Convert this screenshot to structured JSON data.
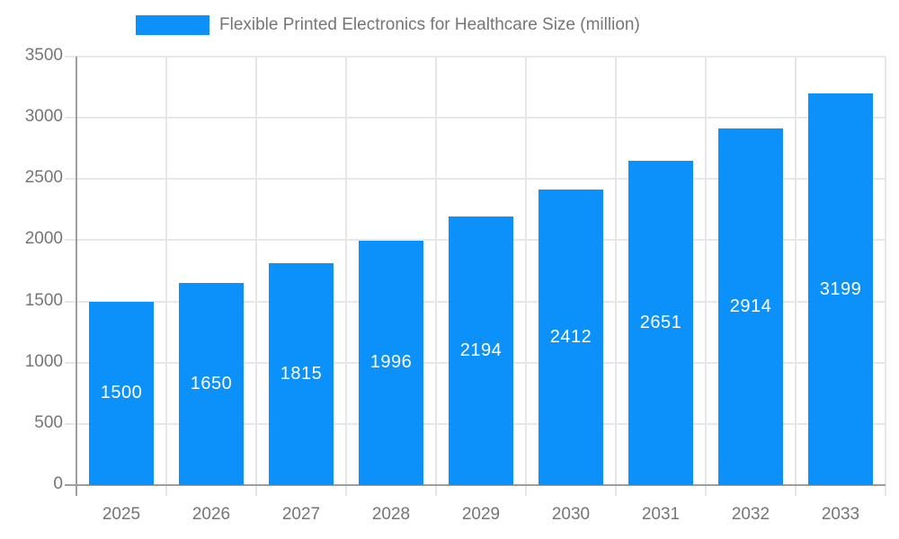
{
  "chart_data": {
    "type": "bar",
    "title": "Flexible Printed Electronics for Healthcare Size (million)",
    "categories": [
      "2025",
      "2026",
      "2027",
      "2028",
      "2029",
      "2030",
      "2031",
      "2032",
      "2033"
    ],
    "values": [
      1500,
      1650,
      1815,
      1996,
      2194,
      2412,
      2651,
      2914,
      3199
    ],
    "xlabel": "",
    "ylabel": "",
    "ylim": [
      0,
      3500
    ],
    "ytick_step": 500,
    "yticks": [
      "0",
      "500",
      "1000",
      "1500",
      "2000",
      "2500",
      "3000",
      "3500"
    ],
    "grid": true,
    "legend_position": "top",
    "colors": {
      "bar": "#0C90FA",
      "bar_value_label": "#ffffff",
      "axis_text": "#757575",
      "gridline": "#e7e7e7",
      "axis_line": "#9e9e9e"
    }
  }
}
